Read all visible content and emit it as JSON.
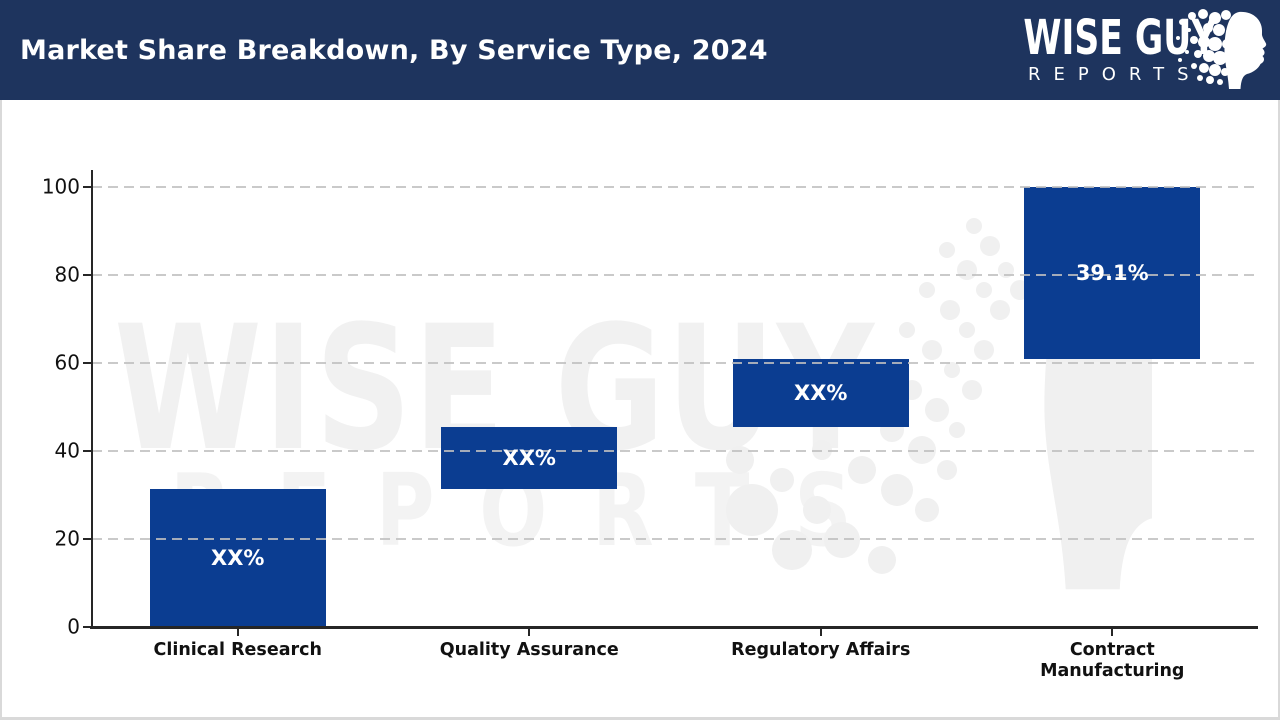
{
  "header": {
    "title": "Market Share Breakdown, By Service Type, 2024",
    "logo": {
      "line1": "WISE GUY",
      "line2": "REPORTS"
    }
  },
  "watermark": {
    "line1": "WISE GUY",
    "line2": "REPORTS"
  },
  "colors": {
    "header_bg": "#1e345e",
    "bar": "#0b3d91",
    "axis": "#262626",
    "grid": "#c8c8c8",
    "bar_label_text": "#ffffff",
    "watermark": "#f1f1f1"
  },
  "chart_data": {
    "type": "bar",
    "subtype": "waterfall",
    "title": "Market Share Breakdown, By Service Type, 2024",
    "categories": [
      "Clinical Research",
      "Quality Assurance",
      "Regulatory Affairs",
      "Contract Manufacturing"
    ],
    "segments": [
      {
        "category": "Clinical Research",
        "start": 0,
        "end": 31.4,
        "height": 31.4,
        "label": "XX%"
      },
      {
        "category": "Quality Assurance",
        "start": 31.4,
        "end": 45.5,
        "height": 14.1,
        "label": "XX%"
      },
      {
        "category": "Regulatory Affairs",
        "start": 45.5,
        "end": 60.9,
        "height": 15.4,
        "label": "XX%"
      },
      {
        "category": "Contract Manufacturing",
        "start": 60.9,
        "end": 100,
        "height": 39.1,
        "label": "39.1%"
      }
    ],
    "xlabel": "",
    "ylabel": "",
    "ylim": [
      0,
      100
    ],
    "yticks": [
      0,
      20,
      40,
      60,
      80,
      100
    ],
    "grid": "horizontal-dashed",
    "legend": "none"
  }
}
